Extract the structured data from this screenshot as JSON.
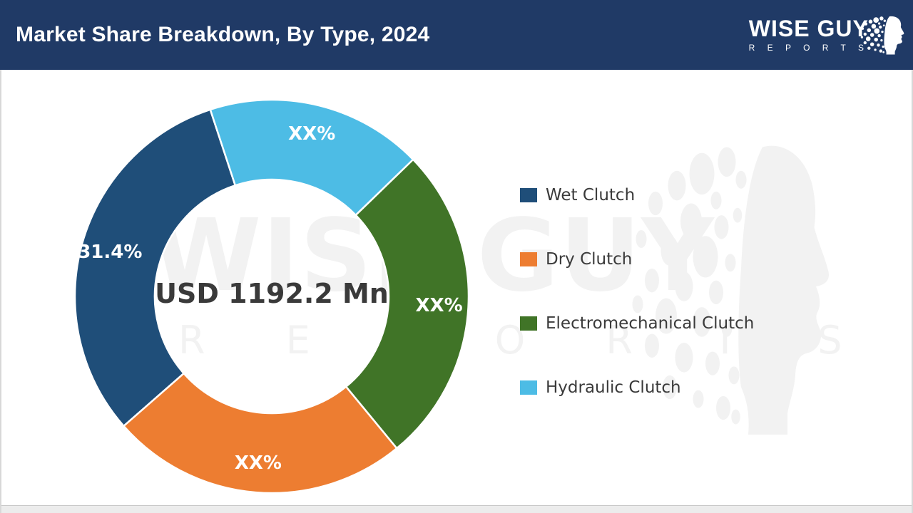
{
  "header": {
    "title": "Market Share Breakdown, By Type, 2024",
    "bg_color": "#203A66",
    "logo": {
      "brand": "WISE GUY",
      "tagline": "R E P O R T S"
    }
  },
  "chart_data": {
    "type": "pie",
    "subtype": "donut",
    "title": "Market Share Breakdown, By Type, 2024",
    "center_label": "USD 1192.2 Mn",
    "start_angle_deg": 341.8,
    "direction": "ccw",
    "legend_position": "right",
    "label_color": "#FFFFFF",
    "segments": [
      {
        "name": "Wet Clutch",
        "pct": 31.4,
        "label": "31.4%",
        "color": "#1F4E79"
      },
      {
        "name": "Dry Clutch",
        "pct": 24.5,
        "label": "XX%",
        "color": "#ED7D31"
      },
      {
        "name": "Electromechanical Clutch",
        "pct": 26.3,
        "label": "XX%",
        "color": "#407427"
      },
      {
        "name": "Hydraulic Clutch",
        "pct": 17.8,
        "label": "XX%",
        "color": "#4DBCE5"
      }
    ]
  },
  "watermark": {
    "brand": "WISE GUY",
    "tagline": "R E P O R T S",
    "color": "#F2F2F2"
  }
}
